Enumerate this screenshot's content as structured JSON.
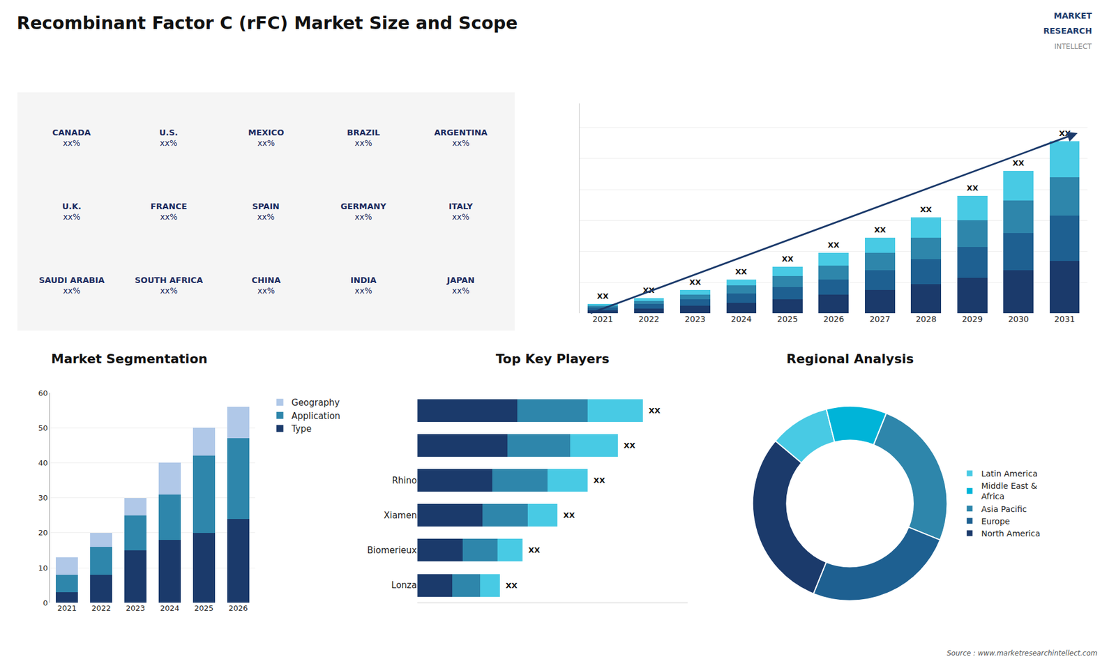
{
  "title": "Recombinant Factor C (rFC) Market Size and Scope",
  "annotations": [
    "MARKET",
    "RESEARCH",
    "INTELLECT",
    "Source : www.marketresearchintellect.com"
  ],
  "chart_data": [
    {
      "type": "map",
      "categories": [
        "CANADA",
        "U.S.",
        "MEXICO",
        "BRAZIL",
        "ARGENTINA",
        "U.K.",
        "FRANCE",
        "SPAIN",
        "GERMANY",
        "ITALY",
        "SAUDI ARABIA",
        "SOUTH AFRICA",
        "CHINA",
        "INDIA",
        "JAPAN"
      ],
      "value_labels": [
        "xx%",
        "xx%",
        "xx%",
        "xx%",
        "xx%",
        "xx%",
        "xx%",
        "xx%",
        "xx%",
        "xx%",
        "xx%",
        "xx%",
        "xx%",
        "xx%",
        "xx%"
      ]
    },
    {
      "type": "bar",
      "stacked": true,
      "categories": [
        "2021",
        "2022",
        "2023",
        "2024",
        "2025",
        "2026",
        "2027",
        "2028",
        "2029",
        "2030",
        "2031"
      ],
      "series": [
        {
          "color": "#1b3a6b",
          "values": [
            2,
            3,
            5,
            7,
            9,
            12,
            15,
            19,
            23,
            28,
            34
          ]
        },
        {
          "color": "#1e6091",
          "values": [
            2,
            3,
            4,
            6,
            8,
            10,
            13,
            16,
            20,
            24,
            29
          ]
        },
        {
          "color": "#2e86ab",
          "values": [
            1,
            2,
            3,
            5,
            7,
            9,
            11,
            14,
            17,
            21,
            25
          ]
        },
        {
          "color": "#48cae4",
          "values": [
            1,
            2,
            3,
            4,
            6,
            8,
            10,
            13,
            16,
            19,
            23
          ]
        }
      ],
      "ylim": [
        0,
        135.42
      ],
      "yticks": [
        0,
        20,
        40,
        60,
        80,
        100,
        120
      ],
      "grid": true,
      "tick_labels": "x",
      "annotations": [
        "XX",
        "XX",
        "XX",
        "XX",
        "XX",
        "XX",
        "XX",
        "XX",
        "XX",
        "XX",
        "XX"
      ]
    },
    {
      "type": "bar",
      "title": "Market Segmentation",
      "stacked": true,
      "categories": [
        "2021",
        "2022",
        "2023",
        "2024",
        "2025",
        "2026"
      ],
      "series": [
        {
          "name": "Type",
          "color": "#1b3a6b",
          "values": [
            3,
            8,
            15,
            18,
            20,
            24
          ]
        },
        {
          "name": "Application",
          "color": "#2e86ab",
          "values": [
            5,
            8,
            10,
            13,
            22,
            23
          ]
        },
        {
          "name": "Geography",
          "color": "#b0c8e8",
          "values": [
            5,
            4,
            5,
            9,
            8,
            9
          ]
        }
      ],
      "ylim": [
        0,
        60
      ],
      "yticks": [
        0,
        10,
        20,
        30,
        40,
        50,
        60
      ],
      "grid": true,
      "legend": "right"
    },
    {
      "type": "bar",
      "title": "Top Key Players",
      "orientation": "horizontal",
      "stacked": true,
      "categories": [
        null,
        null,
        "Rhino",
        "Xiamen",
        "Biomerieux",
        "Lonza"
      ],
      "series": [
        {
          "color": "#1b3a6b",
          "values": [
            40,
            36,
            30,
            26,
            18,
            14
          ]
        },
        {
          "color": "#2e86ab",
          "values": [
            28,
            25,
            22,
            18,
            14,
            11
          ]
        },
        {
          "color": "#48cae4",
          "values": [
            22,
            19,
            16,
            12,
            10,
            8
          ]
        }
      ],
      "xlim": [
        0,
        108
      ],
      "tick_labels": "y",
      "grid": false,
      "annotations": [
        "XX",
        "XX",
        "XX",
        "XX",
        "XX",
        "XX"
      ]
    },
    {
      "type": "pie",
      "title": "Regional Analysis",
      "categories": [
        "Latin America",
        "Middle East &\nAfrica",
        "Asia Pacific",
        "Europe",
        "North America"
      ],
      "values": [
        10,
        10,
        25,
        25,
        30
      ],
      "colors": [
        "#48cae4",
        "#00b4d8",
        "#2e86ab",
        "#1e6091",
        "#1b3a6b"
      ],
      "legend": "right"
    }
  ]
}
